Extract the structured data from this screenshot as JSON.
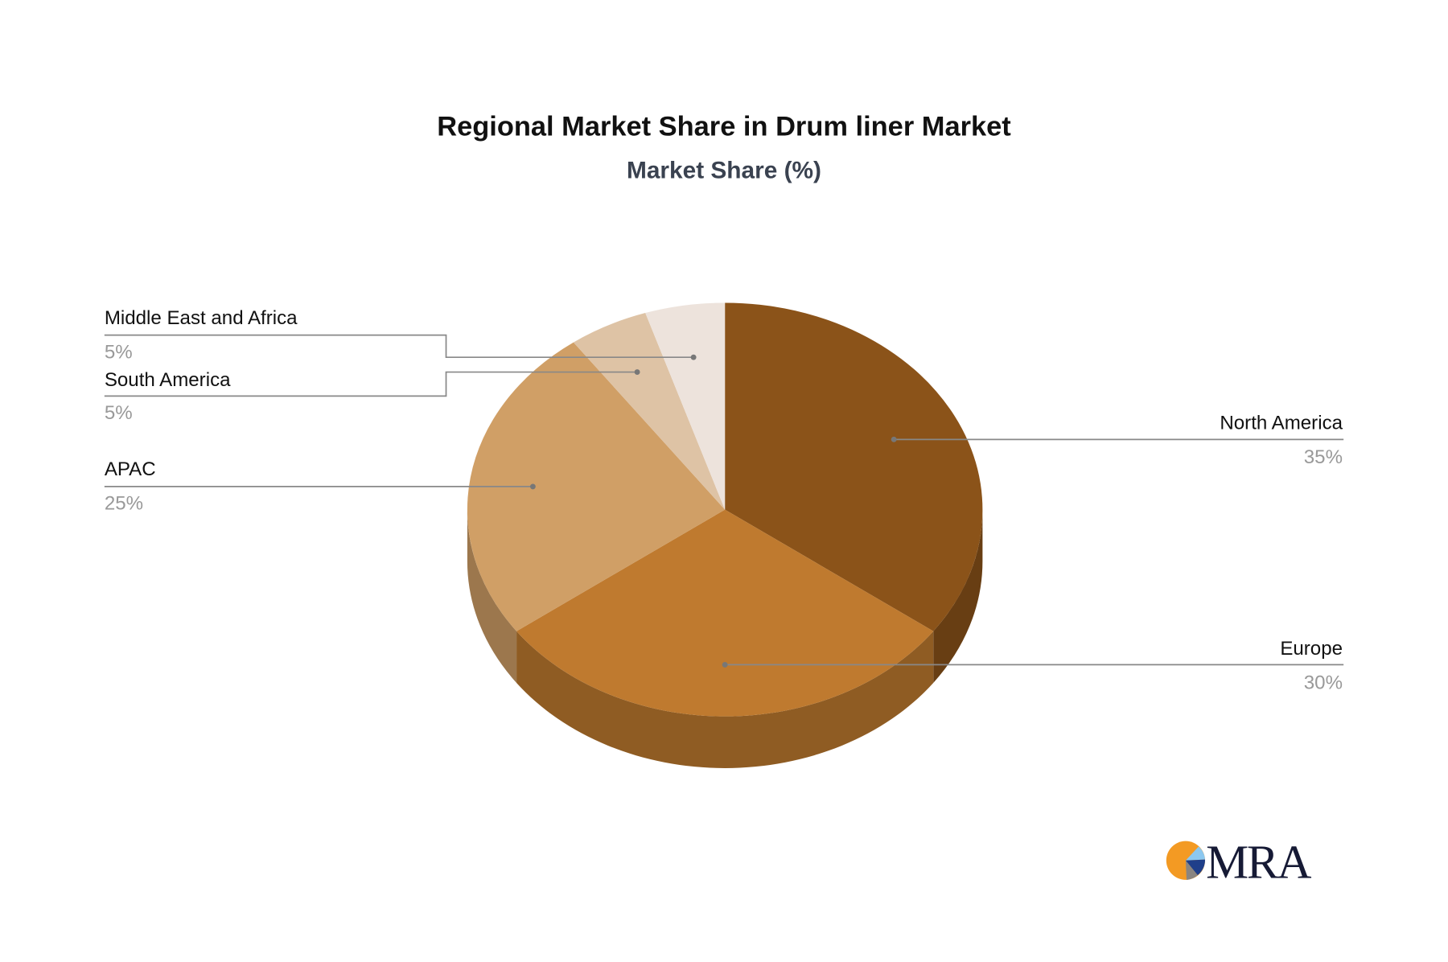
{
  "chart_data": {
    "type": "pie",
    "title": "Regional Market Share in Drum liner Market",
    "subtitle": "Market Share (%)",
    "slices": [
      {
        "label": "North America",
        "value": 35,
        "pct_label": "35%",
        "color": "#8B5319"
      },
      {
        "label": "Europe",
        "value": 30,
        "pct_label": "30%",
        "color": "#BF7A2F"
      },
      {
        "label": "APAC",
        "value": 25,
        "pct_label": "25%",
        "color": "#D09F66"
      },
      {
        "label": "South America",
        "value": 5,
        "pct_label": "5%",
        "color": "#DEC3A5"
      },
      {
        "label": "Middle East and Africa",
        "value": 5,
        "pct_label": "5%",
        "color": "#EDE3DC"
      }
    ],
    "style": "3d"
  },
  "logo": {
    "text": "MRA"
  }
}
